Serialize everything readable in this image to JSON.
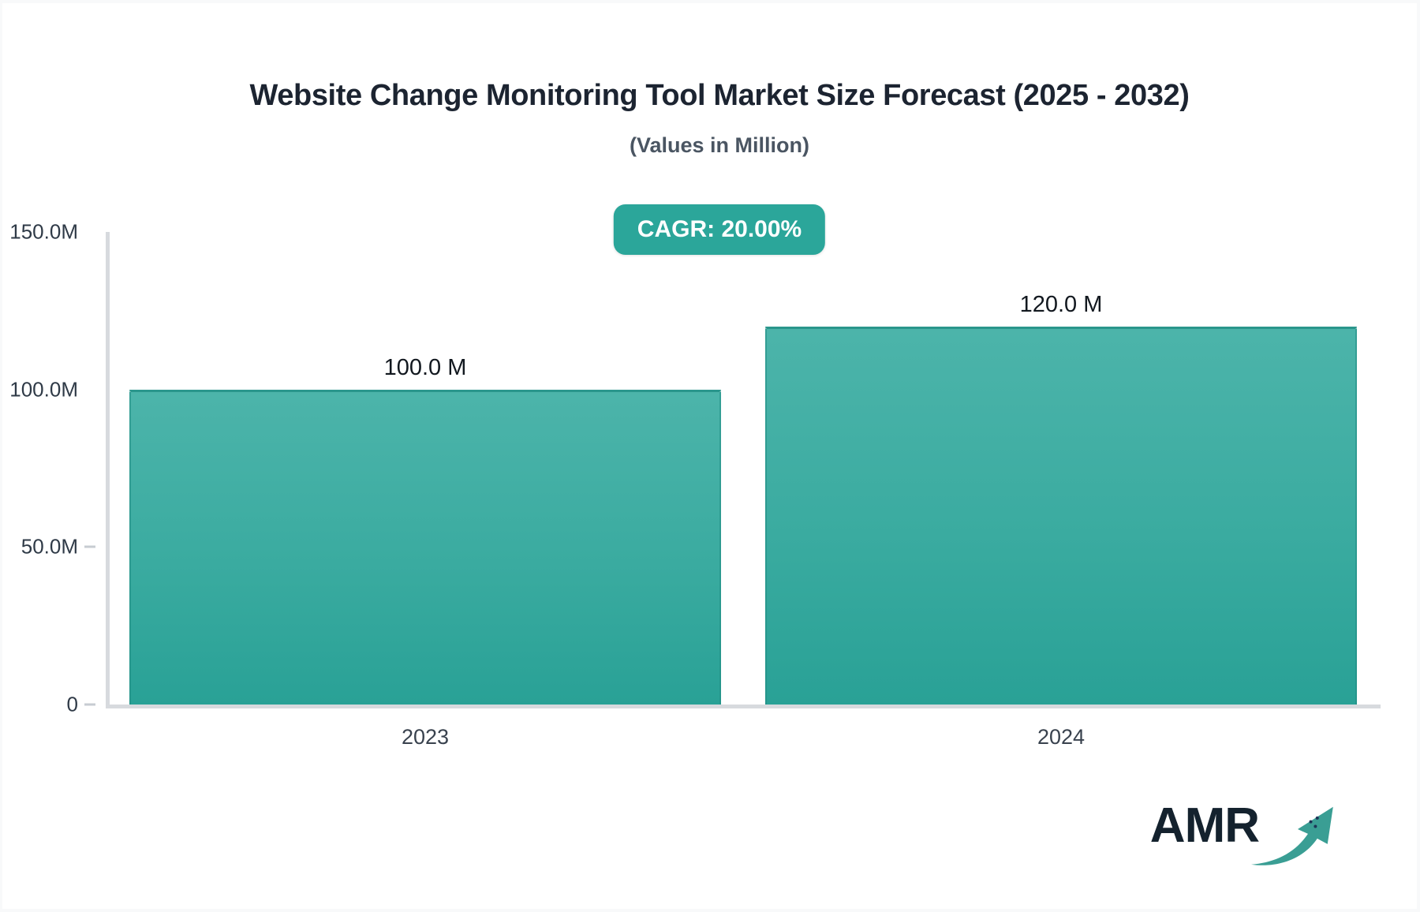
{
  "header": {
    "title": "Website Change Monitoring Tool Market Size Forecast (2025 - 2032)",
    "subtitle": "(Values in Million)"
  },
  "badge": {
    "label": "CAGR: 20.00%",
    "background": "#2BA69A",
    "text_color": "#FFFFFF"
  },
  "chart_data": {
    "type": "bar",
    "title": "Website Change Monitoring Tool Market Size Forecast (2025 - 2032)",
    "subtitle": "(Values in Million)",
    "categories": [
      "2023",
      "2024"
    ],
    "values": [
      100.0,
      120.0
    ],
    "value_labels": [
      "100.0 M",
      "120.0 M"
    ],
    "unit": "Million (M)",
    "cagr_percent": "20.00%",
    "xlabel": "",
    "ylabel": "",
    "ylim": [
      0,
      150
    ],
    "grid": false,
    "legend": null,
    "y_ticks": [
      {
        "value": 150,
        "label": "150.0M",
        "dash": false
      },
      {
        "value": 100,
        "label": "100.0M",
        "dash": false
      },
      {
        "value": 50,
        "label": "50.0M",
        "dash": true
      },
      {
        "value": 0,
        "label": "0",
        "dash": true
      }
    ],
    "colors": {
      "bar_top": "#4cb4aa",
      "bar_bottom": "#29a196",
      "bar_edge": "#2a968c",
      "axis": "#d7dade"
    }
  },
  "logo": {
    "text": "AMR",
    "icon": "trend-up-arrow",
    "arrow_color": "#3a9e94",
    "text_color": "#14222e"
  }
}
